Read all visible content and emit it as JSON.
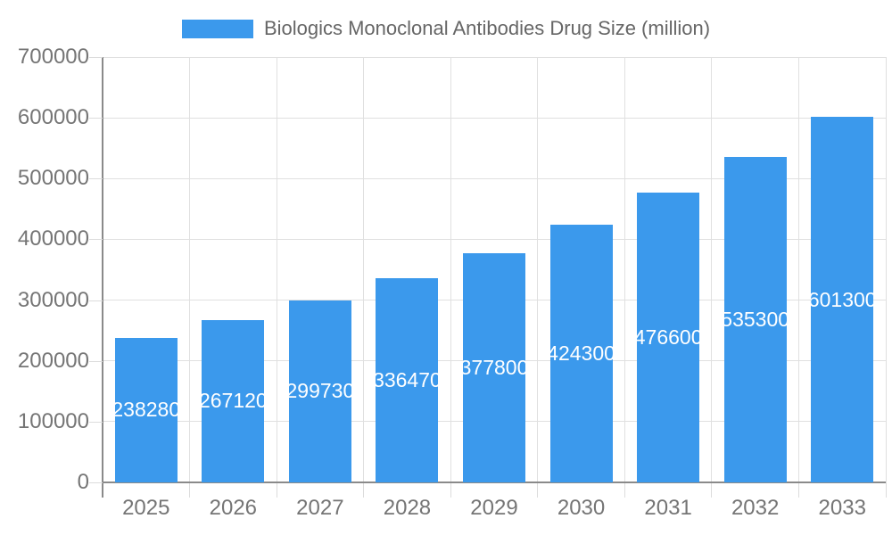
{
  "legend": {
    "label": "Biologics Monoclonal Antibodies Drug Size (million)",
    "swatch_color": "#3b99ec"
  },
  "chart_data": {
    "type": "bar",
    "title": "Biologics Monoclonal Antibodies Drug Size (million)",
    "categories": [
      "2025",
      "2026",
      "2027",
      "2028",
      "2029",
      "2030",
      "2031",
      "2032",
      "2033"
    ],
    "values": [
      238280,
      267120,
      299730,
      336470,
      377800,
      424300,
      476600,
      535300,
      601300
    ],
    "xlabel": "",
    "ylabel": "",
    "ylim": [
      0,
      700000
    ],
    "yticks": [
      0,
      100000,
      200000,
      300000,
      400000,
      500000,
      600000,
      700000
    ],
    "grid": true,
    "legend_position": "top",
    "bar_color": "#3b99ec",
    "bar_label_color": "#ffffff"
  },
  "colors": {
    "bar": "#3b99ec",
    "grid": "#e0e0e0",
    "axis_line": "#8a8a8a",
    "tick_label": "#757575",
    "legend_text": "#666666",
    "background": "#ffffff"
  }
}
